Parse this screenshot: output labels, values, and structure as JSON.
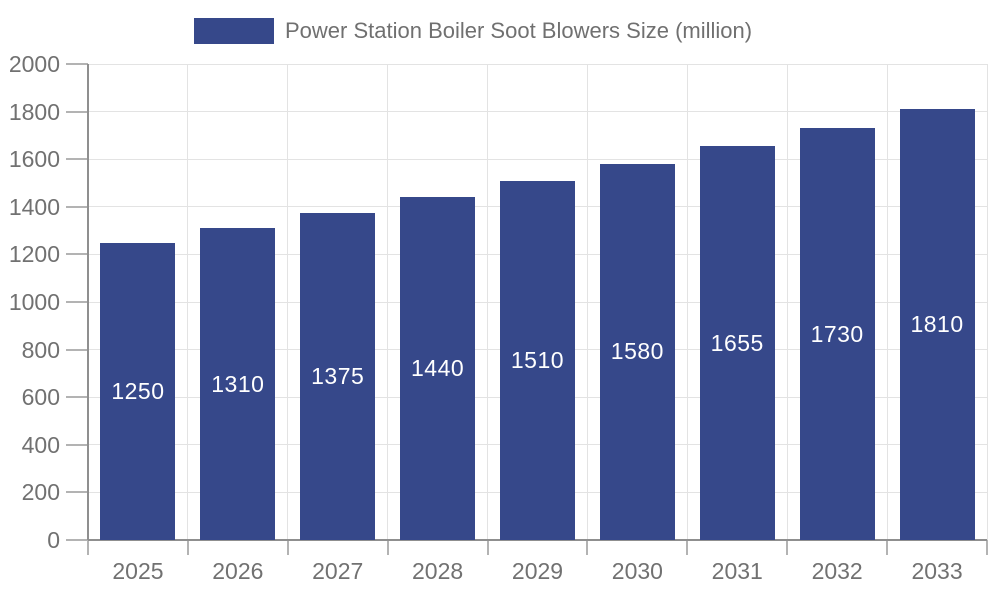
{
  "chart_data": {
    "type": "bar",
    "title": "Power Station Boiler Soot Blowers Size (million)",
    "legend_label": "Power Station Boiler Soot Blowers Size (million)",
    "legend_position": "top",
    "categories": [
      "2025",
      "2026",
      "2027",
      "2028",
      "2029",
      "2030",
      "2031",
      "2032",
      "2033"
    ],
    "values": [
      1250,
      1310,
      1375,
      1440,
      1510,
      1580,
      1655,
      1730,
      1810
    ],
    "xlabel": "",
    "ylabel": "",
    "ylim": [
      0,
      2000
    ],
    "ytick_step": 200,
    "ytick_labels": [
      "0",
      "200",
      "400",
      "600",
      "800",
      "1000",
      "1200",
      "1400",
      "1600",
      "1800",
      "2000"
    ],
    "grid": true,
    "colors": {
      "bar": "#36488A",
      "bar_label": "#FFFFFF",
      "grid": "#E3E3E3",
      "axis": "#8F8F8F",
      "tick": "#B3B3B3",
      "text": "#717171"
    }
  }
}
